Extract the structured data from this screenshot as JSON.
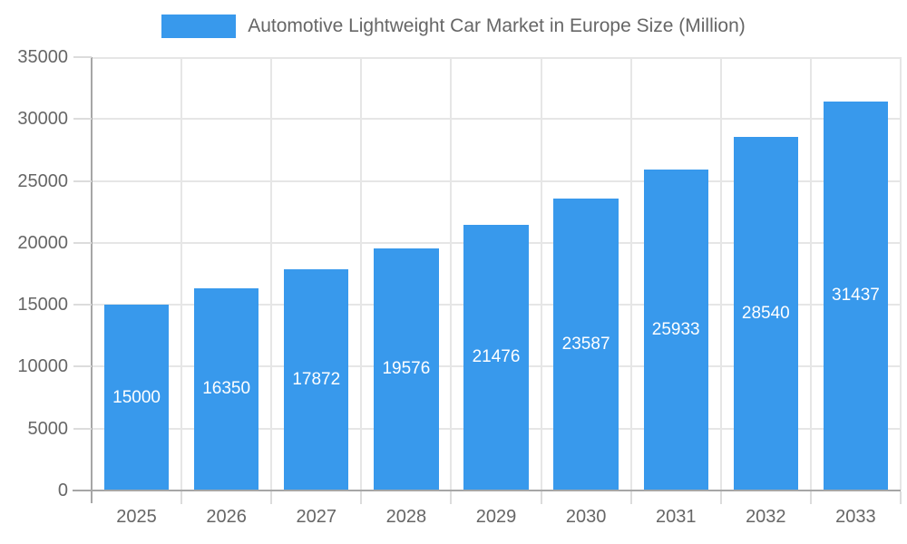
{
  "chart_data": {
    "type": "bar",
    "title": "",
    "legend": "Automotive Lightweight Car Market in Europe Size (Million)",
    "legend_position": "top",
    "categories": [
      "2025",
      "2026",
      "2027",
      "2028",
      "2029",
      "2030",
      "2031",
      "2032",
      "2033"
    ],
    "values": [
      15000,
      16350,
      17872,
      19576,
      21476,
      23587,
      25933,
      28540,
      31437
    ],
    "value_labels": [
      "15000",
      "16350",
      "17872",
      "19576",
      "21476",
      "23587",
      "25933",
      "28540",
      "31437"
    ],
    "xlabel": "",
    "ylabel": "",
    "ylim": [
      0,
      35000
    ],
    "yticks": [
      0,
      5000,
      10000,
      15000,
      20000,
      25000,
      30000,
      35000
    ],
    "ytick_labels": [
      "0",
      "5000",
      "10000",
      "15000",
      "20000",
      "25000",
      "30000",
      "35000"
    ],
    "grid": true,
    "colors": {
      "bar": "#3899ec",
      "bar_value_label": "#ffffff",
      "axis_line": "#a6a6a6",
      "gridline": "#e6e6e6",
      "tick_mark": "#dcdcdc",
      "tick_label": "#666666",
      "legend_text": "#666666",
      "background": "#ffffff"
    }
  }
}
